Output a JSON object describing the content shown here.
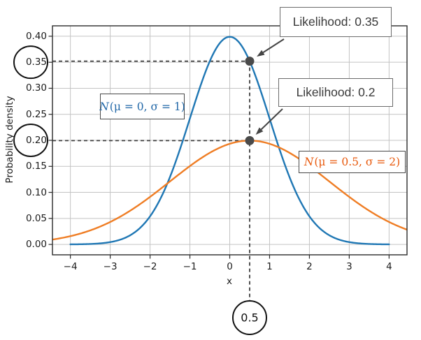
{
  "chart_data": {
    "type": "line",
    "title": "",
    "xlabel": "x",
    "ylabel": "Probability density",
    "xlim": [
      -4.45,
      4.45
    ],
    "ylim": [
      -0.02,
      0.42
    ],
    "grid": true,
    "x_ticks": {
      "values": [
        -4,
        -3,
        -2,
        -1,
        0,
        1,
        2,
        3,
        4
      ],
      "labels": [
        "−4",
        "−3",
        "−2",
        "−1",
        "0",
        "1",
        "2",
        "3",
        "4"
      ]
    },
    "y_ticks": {
      "values": [
        0,
        0.05,
        0.1,
        0.15,
        0.2,
        0.25,
        0.3,
        0.35,
        0.4
      ],
      "labels": [
        "0.00",
        "0.05",
        "0.10",
        "0.15",
        "0.20",
        "0.25",
        "0.30",
        "0.35",
        "0.40"
      ]
    },
    "series": [
      {
        "name": "normal-mu-0-sigma-1",
        "label": {
          "symbol": "N",
          "args": "(μ = 0, σ = 1)"
        },
        "color": "#1f77b4",
        "mu": 0,
        "sigma": 1,
        "x_plot_range": [
          -4,
          4
        ],
        "points": {
          "x": [
            -4,
            -3.5,
            -3,
            -2.5,
            -2,
            -1.5,
            -1,
            -0.5,
            0,
            0.5,
            1,
            1.5,
            2,
            2.5,
            3,
            3.5,
            4
          ],
          "y": [
            0.0001,
            0.0009,
            0.0044,
            0.0175,
            0.054,
            0.1295,
            0.242,
            0.3521,
            0.3989,
            0.3521,
            0.242,
            0.1295,
            0.054,
            0.0175,
            0.0044,
            0.0009,
            0.0001
          ]
        }
      },
      {
        "name": "normal-mu-0.5-sigma-2",
        "label": {
          "symbol": "N",
          "args": "(μ = 0.5, σ = 2)"
        },
        "color": "#ef7d24",
        "mu": 0.5,
        "sigma": 2,
        "x_plot_range": [
          -4.45,
          4.45
        ],
        "points": {
          "x": [
            -4.5,
            -4,
            -3.5,
            -3,
            -2.5,
            -2,
            -1.5,
            -1,
            -0.5,
            0,
            0.5,
            1,
            1.5,
            2,
            2.5,
            3,
            3.5,
            4,
            4.5
          ],
          "y": [
            0.0088,
            0.0159,
            0.027,
            0.0431,
            0.0648,
            0.0913,
            0.121,
            0.1506,
            0.176,
            0.1933,
            0.1995,
            0.1933,
            0.176,
            0.1506,
            0.121,
            0.0913,
            0.0648,
            0.0431,
            0.027
          ]
        }
      }
    ],
    "annotations": {
      "x_value": 0.5,
      "points": [
        {
          "x": 0.5,
          "y": 0.3521,
          "label": "Likelihood: 0.35"
        },
        {
          "x": 0.5,
          "y": 0.1995,
          "label": "Likelihood: 0.2"
        }
      ],
      "circled_y_tick_labels": [
        "0.35",
        "0.20"
      ],
      "circled_x_label": "0.5",
      "marker_color": "#4a4a4a",
      "dash_color": "#3d3d3d",
      "circle_color": "#111111"
    }
  }
}
